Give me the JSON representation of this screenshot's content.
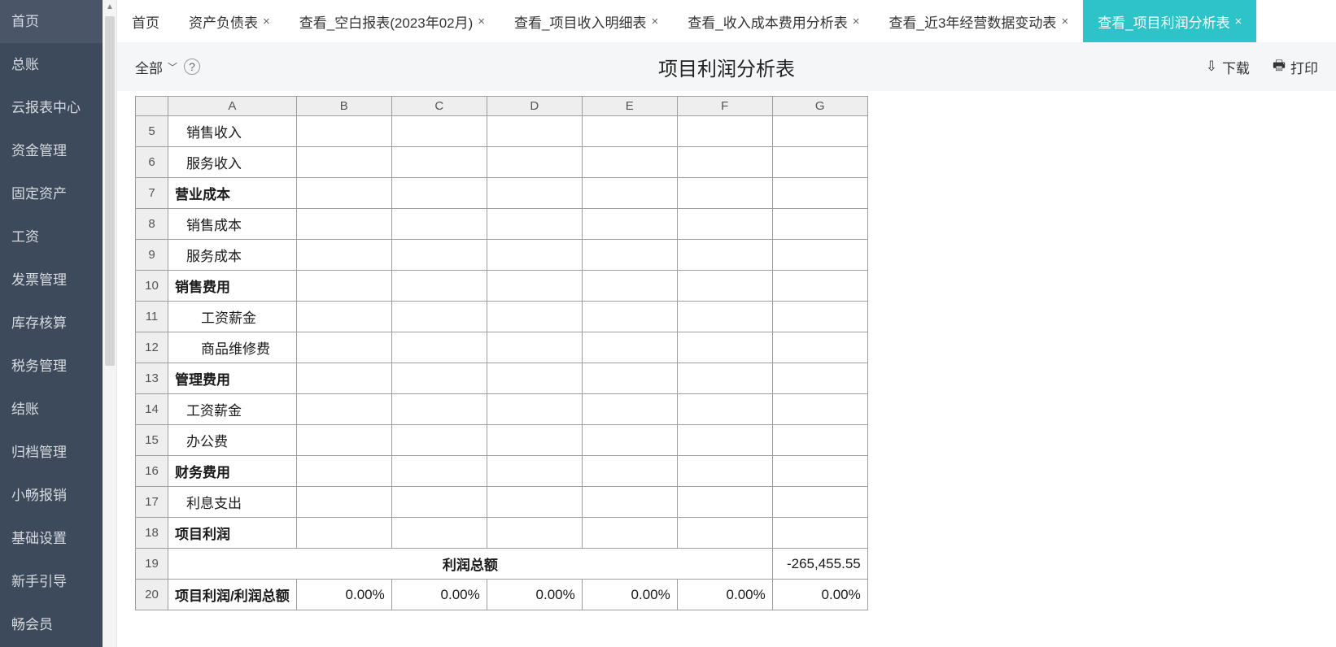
{
  "sidebar": {
    "items": [
      {
        "label": "首页"
      },
      {
        "label": "总账"
      },
      {
        "label": "云报表中心"
      },
      {
        "label": "资金管理"
      },
      {
        "label": "固定资产"
      },
      {
        "label": "工资"
      },
      {
        "label": "发票管理"
      },
      {
        "label": "库存核算"
      },
      {
        "label": "税务管理"
      },
      {
        "label": "结账"
      },
      {
        "label": "归档管理"
      },
      {
        "label": "小畅报销"
      },
      {
        "label": "基础设置"
      },
      {
        "label": "新手引导"
      },
      {
        "label": "畅会员"
      }
    ]
  },
  "tabs": [
    {
      "label": "首页",
      "closable": false,
      "active": false
    },
    {
      "label": "资产负债表",
      "closable": true,
      "active": false
    },
    {
      "label": "查看_空白报表(2023年02月)",
      "closable": true,
      "active": false
    },
    {
      "label": "查看_项目收入明细表",
      "closable": true,
      "active": false
    },
    {
      "label": "查看_收入成本费用分析表",
      "closable": true,
      "active": false
    },
    {
      "label": "查看_近3年经营数据变动表",
      "closable": true,
      "active": false
    },
    {
      "label": "查看_项目利润分析表",
      "closable": true,
      "active": true
    }
  ],
  "toolbar": {
    "filter_label": "全部",
    "title": "项目利润分析表",
    "download_label": "下载",
    "print_label": "打印"
  },
  "sheet": {
    "col_headers": [
      "A",
      "B",
      "C",
      "D",
      "E",
      "F",
      "G"
    ],
    "row_start": 5,
    "rows": [
      {
        "n": 5,
        "A": "销售收入",
        "indent": 1
      },
      {
        "n": 6,
        "A": "服务收入",
        "indent": 1
      },
      {
        "n": 7,
        "A": "营业成本",
        "bold": true
      },
      {
        "n": 8,
        "A": "销售成本",
        "indent": 1
      },
      {
        "n": 9,
        "A": "服务成本",
        "indent": 1
      },
      {
        "n": 10,
        "A": "销售费用",
        "bold": true
      },
      {
        "n": 11,
        "A": "工资薪金",
        "indent": 2
      },
      {
        "n": 12,
        "A": "商品维修费",
        "indent": 2
      },
      {
        "n": 13,
        "A": "管理费用",
        "bold": true
      },
      {
        "n": 14,
        "A": "工资薪金",
        "indent": 1
      },
      {
        "n": 15,
        "A": "办公费",
        "indent": 1
      },
      {
        "n": 16,
        "A": "财务费用",
        "bold": true
      },
      {
        "n": 17,
        "A": "利息支出",
        "indent": 1
      },
      {
        "n": 18,
        "A": "项目利润",
        "bold": true
      }
    ],
    "total_row": {
      "n": 19,
      "label": "利润总额",
      "value": "-265,455.55"
    },
    "pct_row": {
      "n": 20,
      "A": "项目利润/利润总额",
      "B": "0.00%",
      "C": "0.00%",
      "D": "0.00%",
      "E": "0.00%",
      "F": "0.00%",
      "G": "0.00%"
    }
  },
  "colors": {
    "sidebar_bg": "#3d4a5c",
    "active_tab_bg": "#2dc3c8",
    "toolbar_bg": "#f5f6f7",
    "grid_header_bg": "#eeeeee",
    "grid_border": "#9e9e9e"
  }
}
